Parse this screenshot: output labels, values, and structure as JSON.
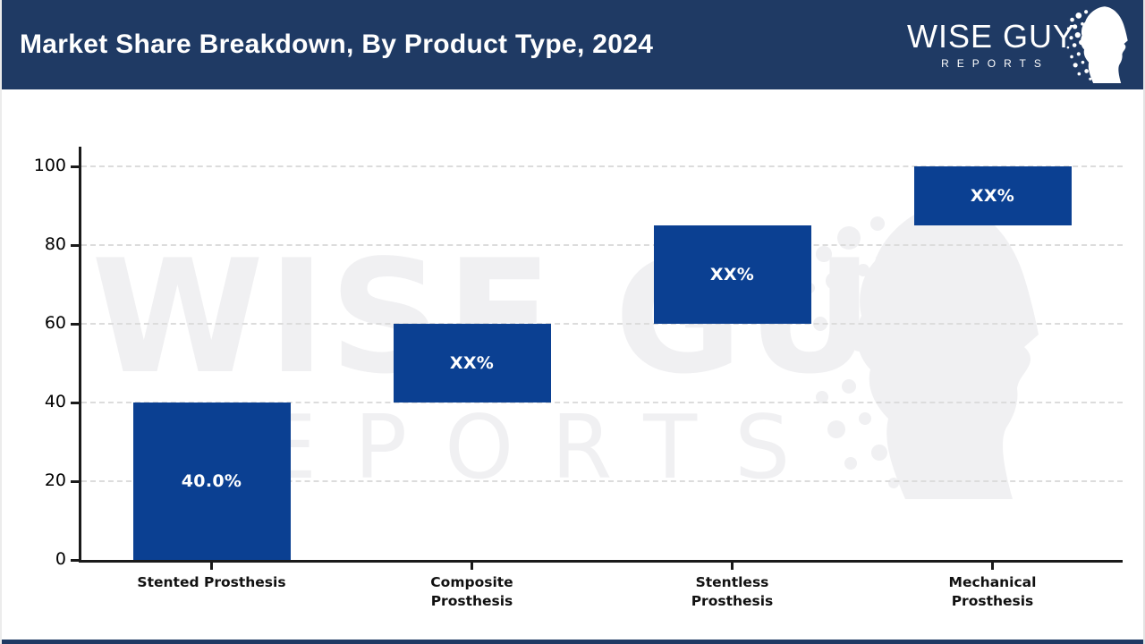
{
  "header": {
    "title": "Market Share Breakdown, By Product Type, 2024",
    "logo": {
      "line1": "WISE GUY",
      "line2": "REPORTS"
    },
    "bg_color": "#1f3a64",
    "text_color": "#ffffff"
  },
  "watermark": {
    "line1": "WISE GUY",
    "line2": "REPORTS",
    "color": "#f0f0f2"
  },
  "chart_data": {
    "type": "bar",
    "subtype": "waterfall",
    "title": "Market Share Breakdown, By Product Type, 2024",
    "categories": [
      "Stented Prosthesis",
      "Composite Prosthesis",
      "Stentless Prosthesis",
      "Mechanical Prosthesis"
    ],
    "category_label_lines": [
      [
        "Stented Prosthesis"
      ],
      [
        "Composite",
        "Prosthesis"
      ],
      [
        "Stentless",
        "Prosthesis"
      ],
      [
        "Mechanical",
        "Prosthesis"
      ]
    ],
    "segments": [
      {
        "category": "Stented Prosthesis",
        "start": 0,
        "end": 40,
        "label": "40.0%"
      },
      {
        "category": "Composite Prosthesis",
        "start": 40,
        "end": 60,
        "label": "XX%"
      },
      {
        "category": "Stentless Prosthesis",
        "start": 60,
        "end": 85,
        "label": "XX%"
      },
      {
        "category": "Mechanical Prosthesis",
        "start": 85,
        "end": 100,
        "label": "XX%"
      }
    ],
    "y_ticks": [
      0,
      20,
      40,
      60,
      80,
      100
    ],
    "ylim": [
      0,
      105
    ],
    "xlabel": "",
    "ylabel": "",
    "grid": "horizontal-dashed",
    "legend_position": "none",
    "bar_color": "#0b4092",
    "bar_label_color": "#ffffff",
    "grid_color": "#dcdcdc",
    "axis_color": "#1a1a1a"
  },
  "footer": {
    "bg_color": "#1f3a64"
  }
}
